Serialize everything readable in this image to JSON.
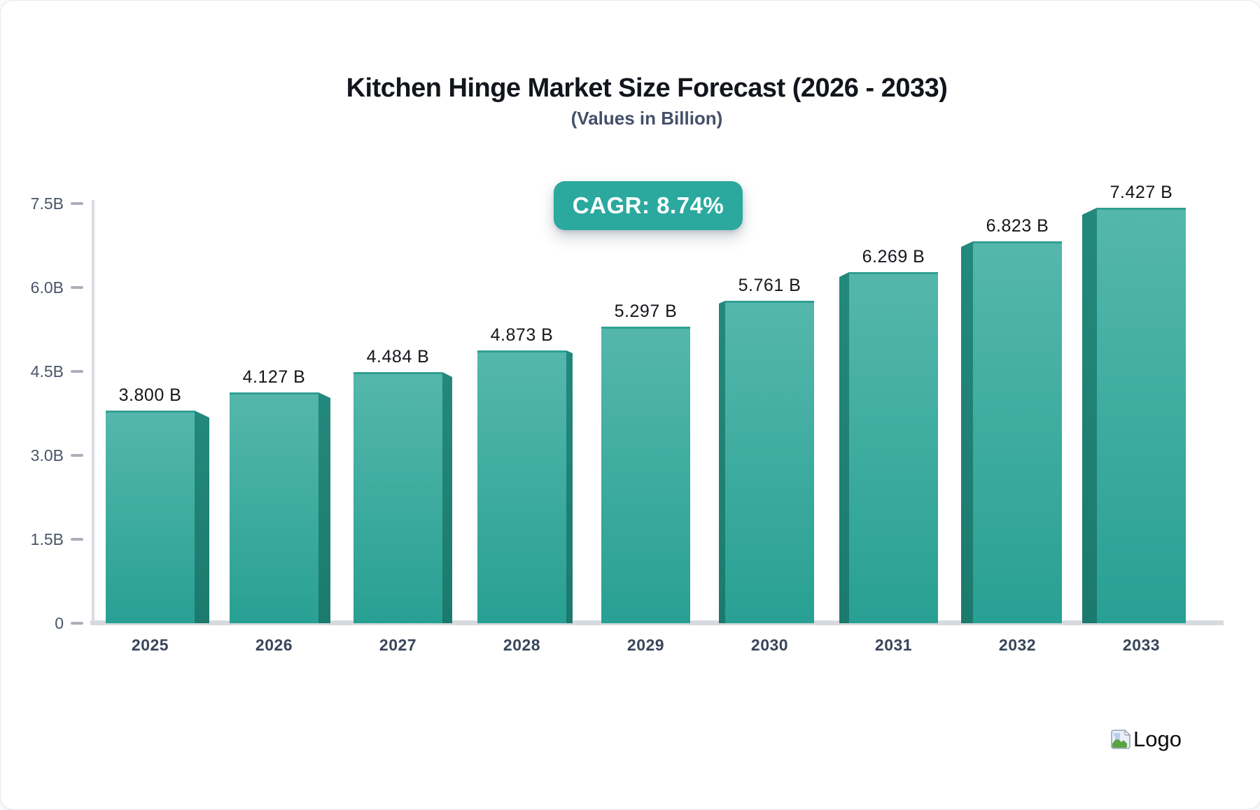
{
  "header": {
    "title": "Kitchen Hinge Market Size Forecast (2026 - 2033)",
    "subtitle": "(Values in Billion)"
  },
  "badge": {
    "label": "CAGR: 8.74%",
    "bg_color": "#2BA99E",
    "text_color": "#FFFFFF"
  },
  "chart_data": {
    "type": "bar",
    "title": "Kitchen Hinge Market Size Forecast (2026 - 2033)",
    "subtitle": "(Values in Billion)",
    "cagr": "CAGR: 8.74%",
    "categories": [
      "2025",
      "2026",
      "2027",
      "2028",
      "2029",
      "2030",
      "2031",
      "2032",
      "2033"
    ],
    "values": [
      3.8,
      4.127,
      4.484,
      4.873,
      5.297,
      5.761,
      6.269,
      6.823,
      7.427
    ],
    "value_labels": [
      "3.800 B",
      "4.127 B",
      "4.484 B",
      "4.873 B",
      "5.297 B",
      "5.761 B",
      "6.269 B",
      "6.823 B",
      "7.427 B"
    ],
    "xlabel": "",
    "ylabel": "",
    "ylim": [
      0,
      7.5
    ],
    "y_ticks": [
      {
        "label": "0",
        "value": 0
      },
      {
        "label": "1.5B",
        "value": 1.5
      },
      {
        "label": "3.0B",
        "value": 3.0
      },
      {
        "label": "4.5B",
        "value": 4.5
      },
      {
        "label": "6.0B",
        "value": 6.0
      },
      {
        "label": "7.5B",
        "value": 7.5
      }
    ],
    "grid": false,
    "legend": false,
    "colors": {
      "bar_front_top": "#55B7AC",
      "bar_front_bottom": "#28A093",
      "bar_side_top": "#23897C",
      "bar_side_bottom": "#1B7A6D",
      "bar_top_edge": "#2D9C8F",
      "axis_line": "#D9DCE1",
      "baseline": "#D7DADE",
      "tick_dash": "#A9B0B9",
      "tick_text": "#4A5568",
      "year_text": "#39455A"
    }
  },
  "logo": {
    "text": "Logo"
  }
}
